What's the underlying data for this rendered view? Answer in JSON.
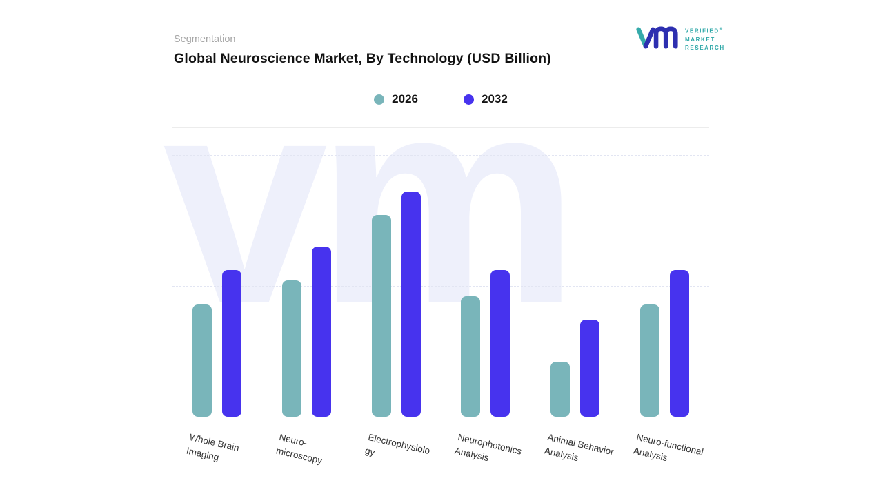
{
  "header": {
    "eyebrow": "Segmentation",
    "title": "Global Neuroscience Market, By Technology (USD Billion)"
  },
  "logo": {
    "line1": "VERIFIED",
    "line2": "MARKET",
    "line3": "RESEARCH",
    "registered": "®",
    "text_color": "#2fa8a8",
    "mark_teal": "#35aaaa",
    "mark_indigo": "#2d2fb0"
  },
  "legend": {
    "items": [
      {
        "label": "2026",
        "color": "#79b5ba"
      },
      {
        "label": "2032",
        "color": "#4733ee"
      }
    ]
  },
  "watermark": {
    "text": "vm"
  },
  "chart_data": {
    "type": "bar",
    "title": "Global Neuroscience Market, By Technology (USD Billion)",
    "categories": [
      "Whole Brain Imaging",
      "Neuro-microscopy",
      "Electrophysiology",
      "Neurophotonics Analysis",
      "Animal Behavior Analysis",
      "Neuro-functional Analysis"
    ],
    "display_labels": [
      "Whole Brain\nImaging",
      "Neuro-\nmicroscopy",
      "Electrophysiolo\ngy",
      "Neurophotonics\nAnalysis",
      "Animal Behavior\nAnalysis",
      "Neuro-functional\nAnalysis"
    ],
    "series": [
      {
        "name": "2026",
        "color": "#79b5ba",
        "values": [
          43,
          52,
          77,
          46,
          21,
          43
        ]
      },
      {
        "name": "2032",
        "color": "#4733ee",
        "values": [
          56,
          65,
          86,
          56,
          37,
          56
        ]
      }
    ],
    "xlabel": "",
    "ylabel": "",
    "ylim": [
      0,
      100
    ],
    "units": "relative scale (no numeric y-axis labels shown)",
    "grid": "horizontal dashed",
    "legend_position": "top center"
  }
}
